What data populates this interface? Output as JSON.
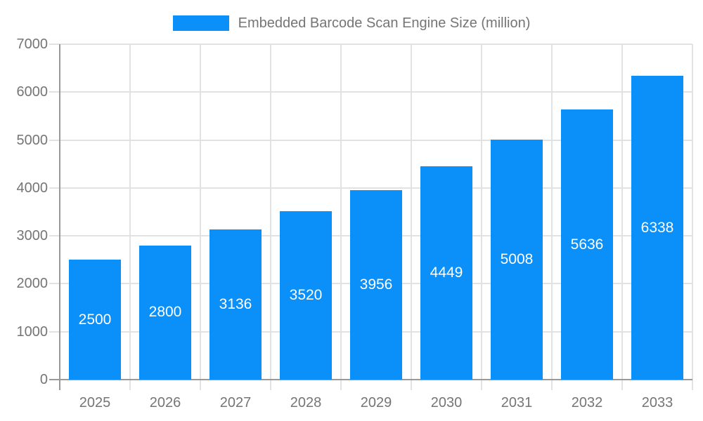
{
  "legend": {
    "label": "Embedded Barcode Scan Engine Size (million)"
  },
  "colors": {
    "bar": "#0a90f8",
    "grid": "#e2e2e2",
    "axis": "#999999",
    "tick_label": "#757575",
    "value_label": "#ffffff",
    "background": "#ffffff"
  },
  "chart_data": {
    "type": "bar",
    "title": "Embedded Barcode Scan Engine Size (million)",
    "categories": [
      "2025",
      "2026",
      "2027",
      "2028",
      "2029",
      "2030",
      "2031",
      "2032",
      "2033"
    ],
    "values": [
      2500,
      2800,
      3136,
      3520,
      3956,
      4449,
      5008,
      5636,
      6338
    ],
    "xlabel": "",
    "ylabel": "",
    "ylim": [
      0,
      7000
    ],
    "yticks": [
      0,
      1000,
      2000,
      3000,
      4000,
      5000,
      6000,
      7000
    ],
    "grid": true,
    "legend_position": "top-center",
    "value_label_position": "inside-middle"
  }
}
